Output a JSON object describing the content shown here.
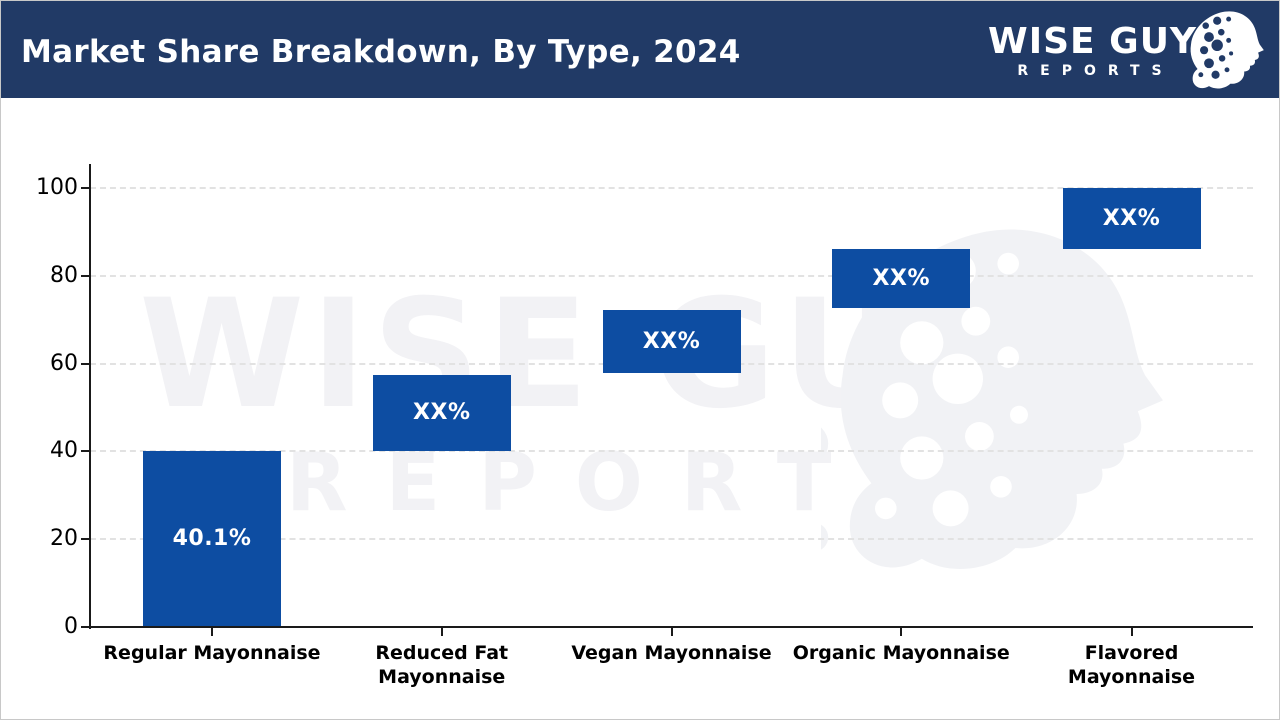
{
  "header": {
    "title": "Market Share Breakdown, By Type, 2024",
    "logo": {
      "line1": "WISE GUY",
      "line2": "REPORTS"
    }
  },
  "watermark": {
    "line1": "WISE GUY",
    "line2": "REPORTS"
  },
  "colors": {
    "header_bg": "#213A66",
    "bar": "#0D4DA2",
    "bar_label": "#FFFFFF",
    "grid": "#E2E2E2",
    "axis": "#1A1A1A",
    "watermark": "#F2F2F5"
  },
  "chart_data": {
    "type": "bar",
    "subtype": "floating-waterfall",
    "title": "Market Share Breakdown, By Type, 2024",
    "categories": [
      "Regular Mayonnaise",
      "Reduced Fat\nMayonnaise",
      "Vegan Mayonnaise",
      "Organic Mayonnaise",
      "Flavored\nMayonnaise"
    ],
    "series": [
      {
        "category": "Regular Mayonnaise",
        "start": 0,
        "end": 40.1,
        "label": "40.1%"
      },
      {
        "category": "Reduced Fat Mayonnaise",
        "start": 40.1,
        "end": 57.5,
        "label": "XX%"
      },
      {
        "category": "Vegan Mayonnaise",
        "start": 57.8,
        "end": 72.1,
        "label": "XX%"
      },
      {
        "category": "Organic Mayonnaise",
        "start": 72.6,
        "end": 86.1,
        "label": "XX%"
      },
      {
        "category": "Flavored Mayonnaise",
        "start": 86.1,
        "end": 100,
        "label": "XX%"
      }
    ],
    "ylim": [
      0,
      105.5
    ],
    "yticks": [
      0,
      20,
      40,
      60,
      80,
      100
    ],
    "grid": "horizontal-dashed",
    "legend": "none",
    "bar_color": "#0D4DA2",
    "value_label_position": "center"
  }
}
